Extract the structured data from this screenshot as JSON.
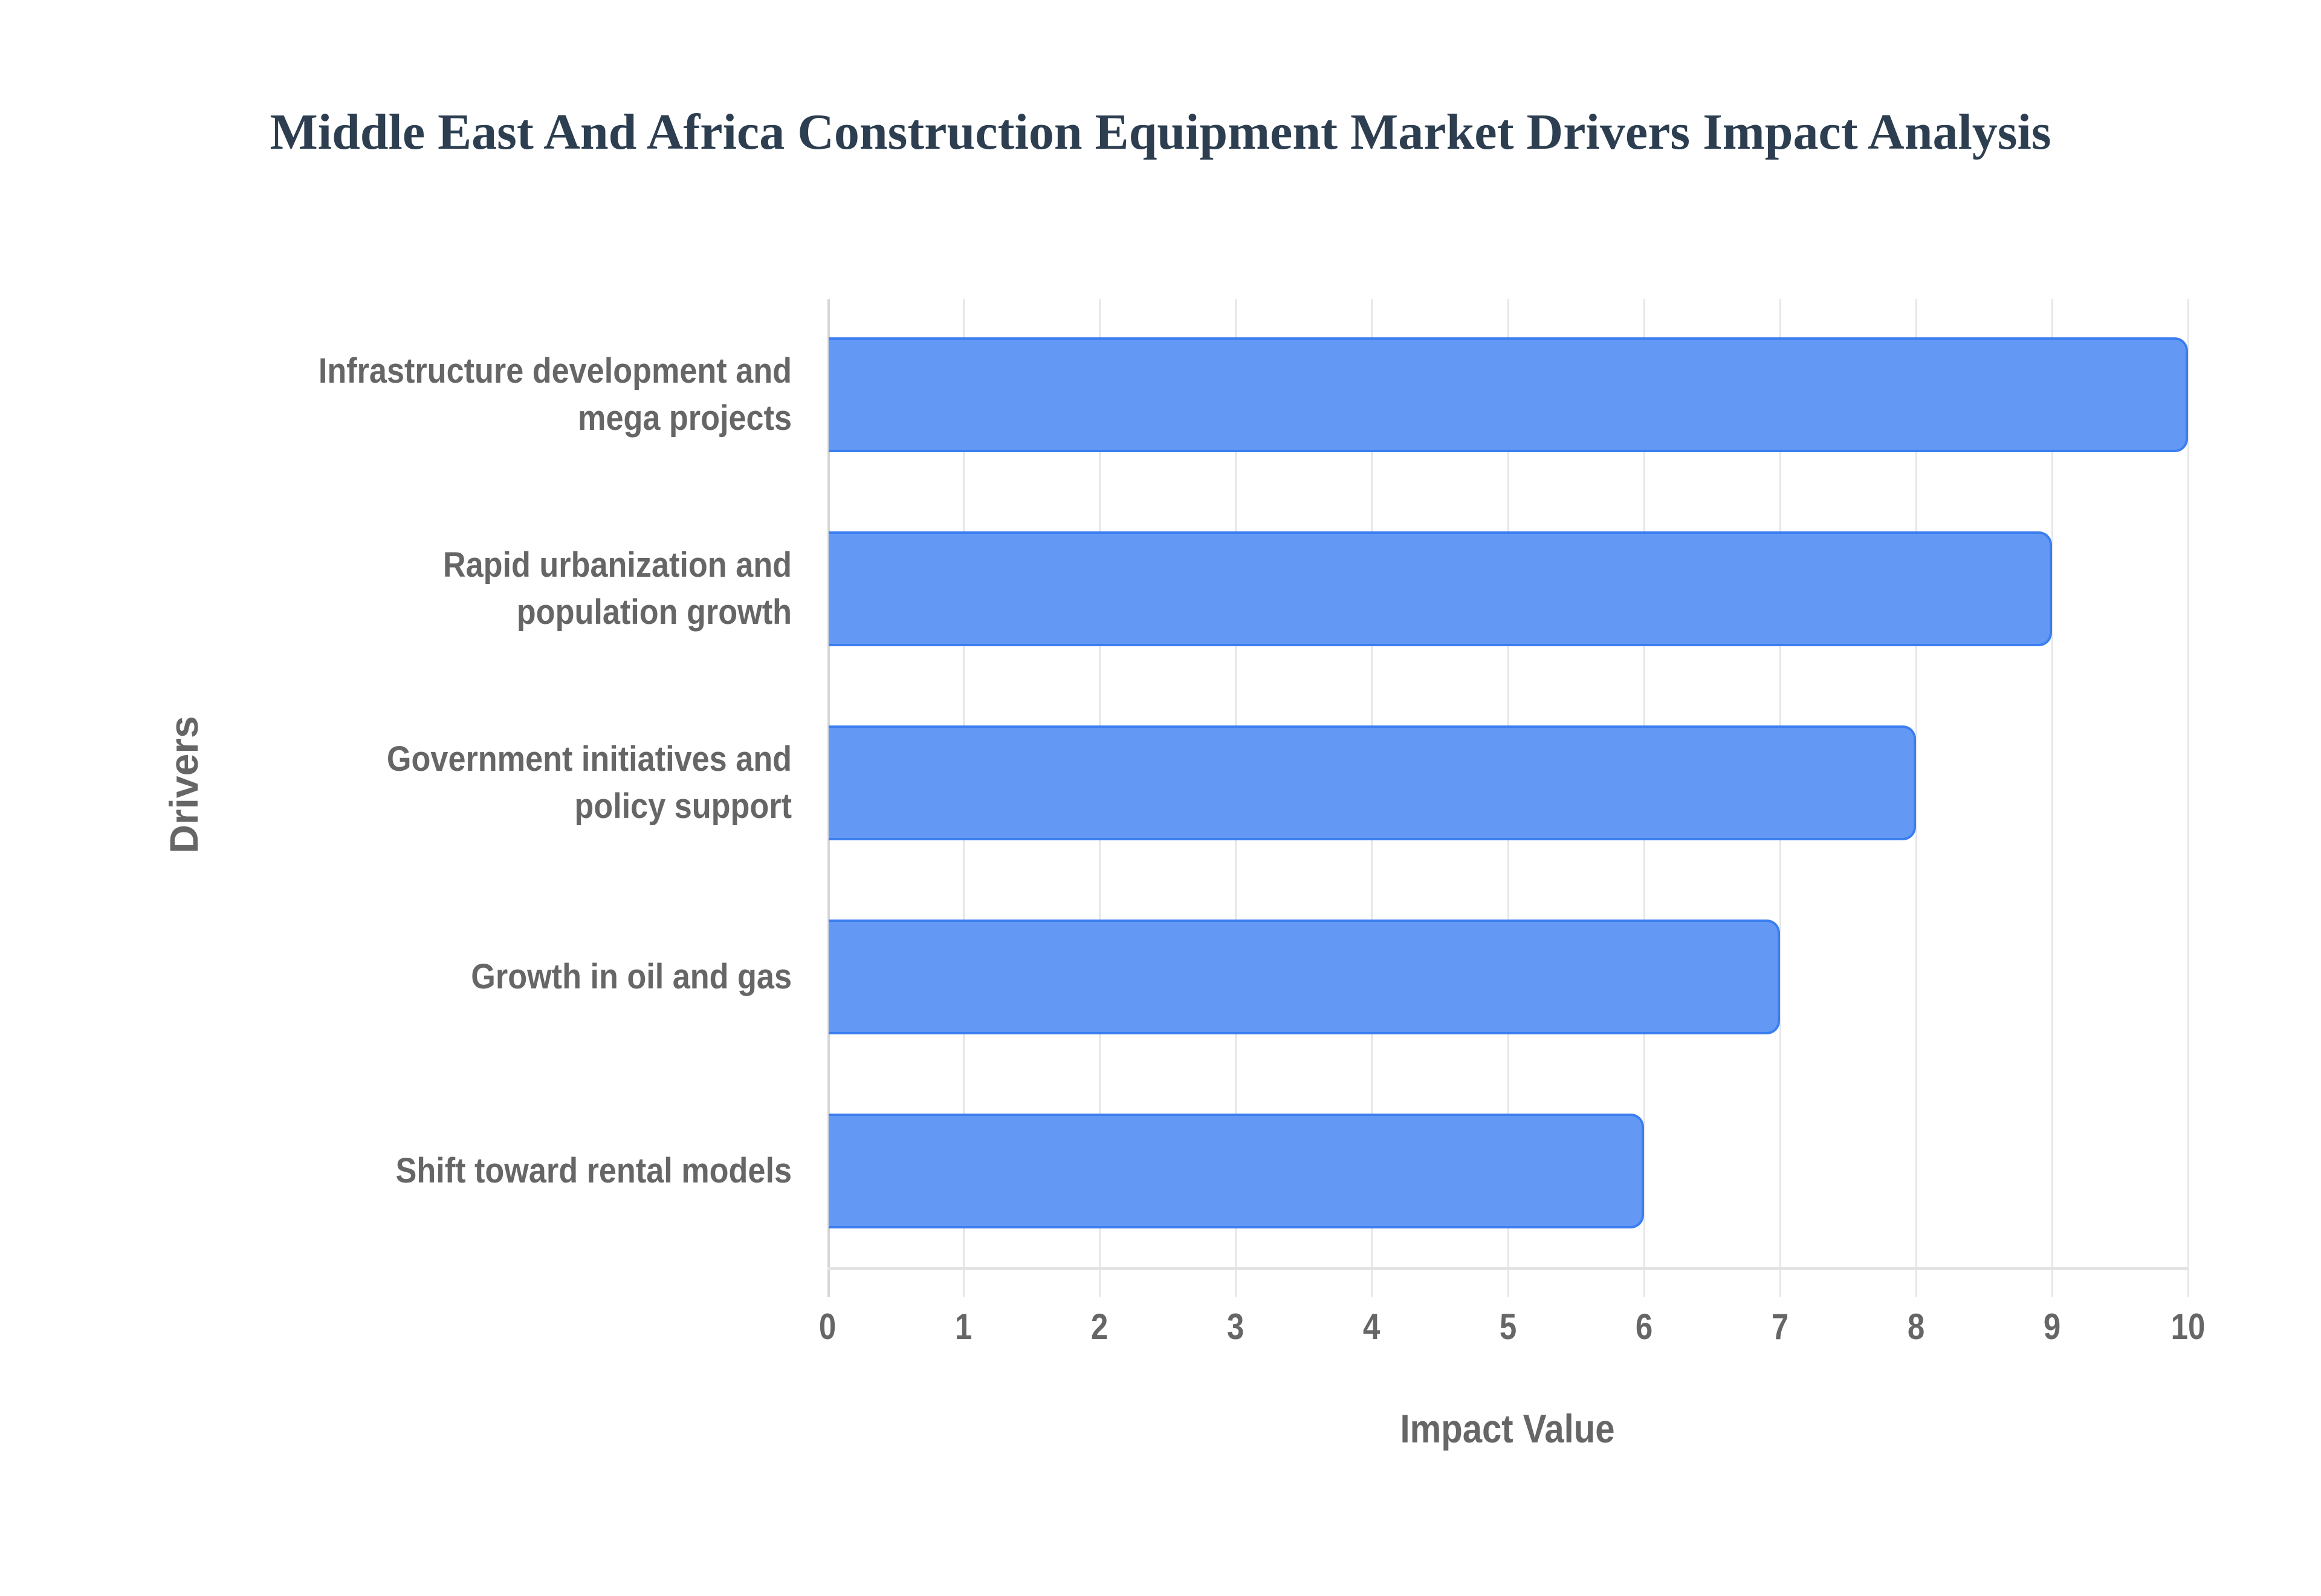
{
  "chart_data": {
    "type": "bar",
    "orientation": "horizontal",
    "title": "Middle East And Africa Construction Equipment Market Drivers Impact Analysis",
    "xlabel": "Impact Value",
    "ylabel": "Drivers",
    "categories": [
      "Infrastructure development and mega projects",
      "Rapid urbanization and population growth",
      "Government initiatives and policy support",
      "Growth in oil and gas",
      "Shift toward rental models"
    ],
    "category_lines": [
      [
        "Infrastructure development and",
        "mega projects"
      ],
      [
        "Rapid urbanization and",
        "population growth"
      ],
      [
        "Government initiatives and",
        "policy support"
      ],
      [
        "Growth in oil and gas"
      ],
      [
        "Shift toward rental models"
      ]
    ],
    "values": [
      10,
      9,
      8,
      7,
      6
    ],
    "xlim": [
      0,
      10
    ],
    "xticks": [
      "0",
      "1",
      "2",
      "3",
      "4",
      "5",
      "6",
      "7",
      "8",
      "9",
      "10"
    ],
    "grid": true,
    "legend": null,
    "colors": {
      "bar_fill": "#6399f5",
      "bar_border": "#3b7ef0",
      "title": "#2c3e50",
      "labels": "#666666",
      "grid": "#e6e6e6"
    }
  }
}
